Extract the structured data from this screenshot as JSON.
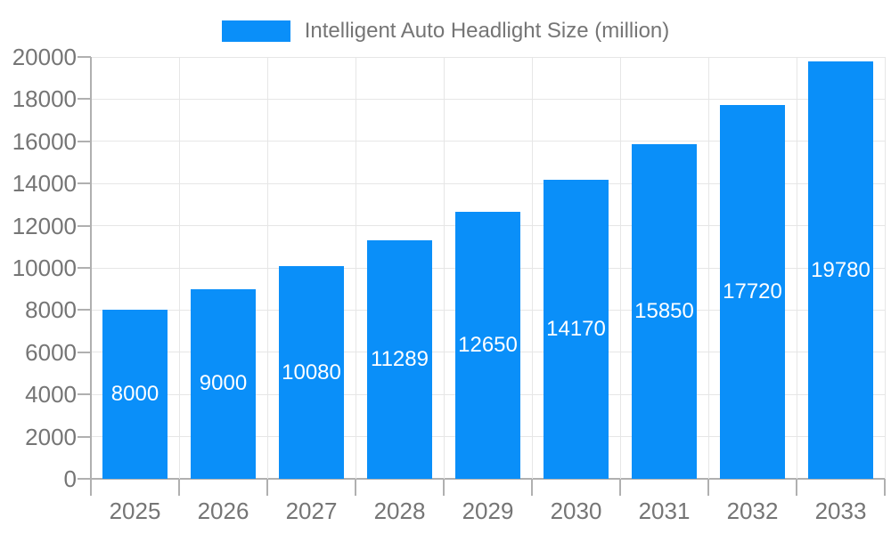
{
  "colors": {
    "bar": "#0a8ff9",
    "grid": "#e6e6e6",
    "axis": "#b0b0b0",
    "text": "#757575",
    "bar_label": "#ffffff",
    "background": "#ffffff"
  },
  "legend": {
    "label": "Intelligent Auto Headlight Size (million)"
  },
  "chart_data": {
    "type": "bar",
    "title": "Intelligent Auto Headlight Size (million)",
    "series_name": "Intelligent Auto Headlight Size (million)",
    "categories": [
      "2025",
      "2026",
      "2027",
      "2028",
      "2029",
      "2030",
      "2031",
      "2032",
      "2033"
    ],
    "values": [
      8000,
      9000,
      10080,
      11289,
      12650,
      14170,
      15850,
      17720,
      19780
    ],
    "bar_value_labels": [
      "8000",
      "9000",
      "10080",
      "11289",
      "12650",
      "14170",
      "15850",
      "17720",
      "19780"
    ],
    "xlabel": "",
    "ylabel": "",
    "ylim": [
      0,
      20000
    ],
    "ytick_step": 2000,
    "yticks": [
      0,
      2000,
      4000,
      6000,
      8000,
      10000,
      12000,
      14000,
      16000,
      18000,
      20000
    ],
    "grid": true,
    "legend_position": "top-center",
    "value_labels_inside_bars": true
  }
}
